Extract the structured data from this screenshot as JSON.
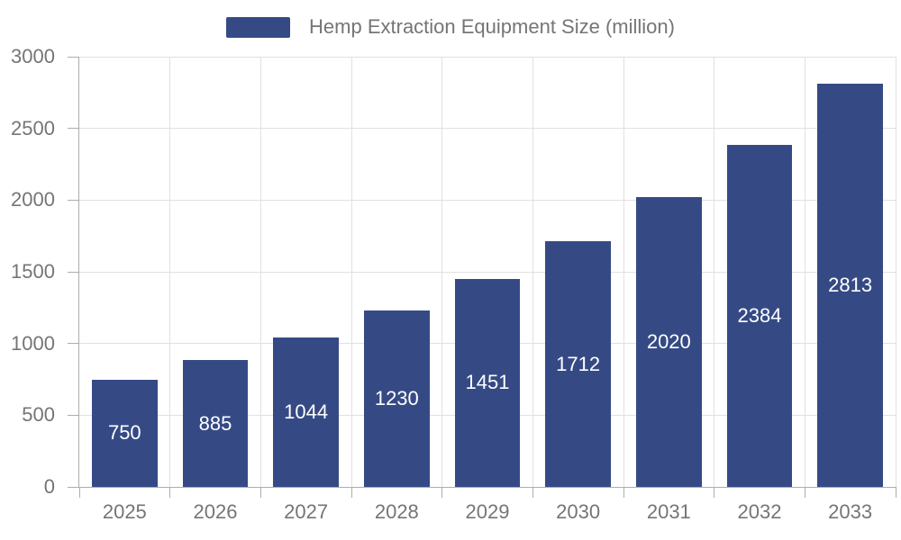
{
  "chart_data": {
    "type": "bar",
    "title": "Hemp Extraction Equipment Size (million)",
    "series_name": "Hemp Extraction Equipment Size (million)",
    "categories": [
      "2025",
      "2026",
      "2027",
      "2028",
      "2029",
      "2030",
      "2031",
      "2032",
      "2033"
    ],
    "values": [
      750,
      885,
      1044,
      1230,
      1451,
      1712,
      2020,
      2384,
      2813
    ],
    "xlabel": "",
    "ylabel": "",
    "ylim": [
      0,
      3000
    ],
    "yticks": [
      0,
      500,
      1000,
      1500,
      2000,
      2500,
      3000
    ],
    "grid": true,
    "legend_position": "top",
    "colors": {
      "bar": "#354a85",
      "bar_label": "#ffffff",
      "axis_label": "#757575",
      "legend_text": "#757575",
      "grid_line": "#e0e0e0",
      "axis_line": "#adadad"
    }
  }
}
